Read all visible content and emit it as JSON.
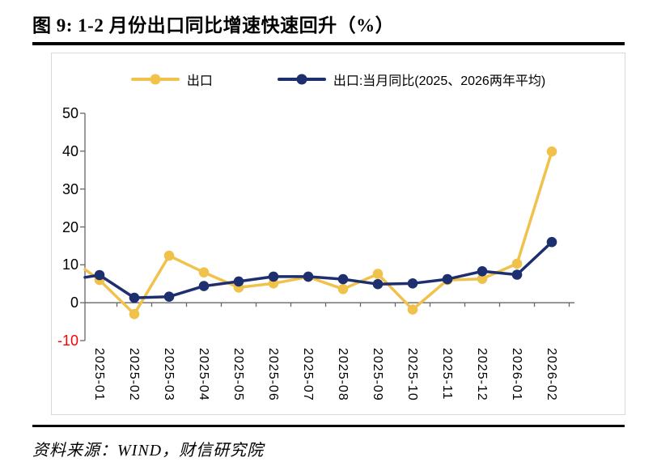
{
  "title": "图 9:  1-2 月份出口同比增速快速回升（%）",
  "source": "资料来源：WIND，财信研究院",
  "colors": {
    "export": "#F0C24B",
    "average": "#1E2F6F",
    "negative_tick": "#FF0000",
    "axis": "#666666",
    "box_border": "#D9D9D9"
  },
  "chart_data": {
    "type": "line",
    "title": "1-2 月份出口同比增速快速回升（%）",
    "categories": [
      "2025-01",
      "2025-02",
      "2025-03",
      "2025-04",
      "2025-05",
      "2025-06",
      "2025-07",
      "2025-08",
      "2025-09",
      "2025-10",
      "2025-11",
      "2025-12",
      "2026-01",
      "2026-02"
    ],
    "series": [
      {
        "name": "出口",
        "color_key": "export",
        "values": [
          6.0,
          -3.0,
          12.4,
          8.0,
          4.0,
          5.1,
          6.8,
          3.6,
          7.6,
          -1.8,
          6.0,
          6.3,
          10.3,
          39.9
        ],
        "edge_start": 8.8
      },
      {
        "name": "出口:当月同比(2025、2026两年平均)",
        "color_key": "average",
        "values": [
          7.3,
          1.3,
          1.6,
          4.4,
          5.6,
          6.9,
          6.9,
          6.2,
          4.9,
          5.1,
          6.2,
          8.3,
          7.4,
          16.0
        ],
        "edge_start": 6.7
      }
    ],
    "ylabel": "",
    "xlabel": "",
    "yticks": [
      50,
      40,
      30,
      20,
      10,
      0,
      -10
    ],
    "ylim": [
      -10,
      50
    ],
    "legend_position": "top-center",
    "grid": false,
    "axis_crosses_at_zero": true,
    "x_tick_style": "category-boundaries",
    "x_label_rotation_deg": 90
  }
}
